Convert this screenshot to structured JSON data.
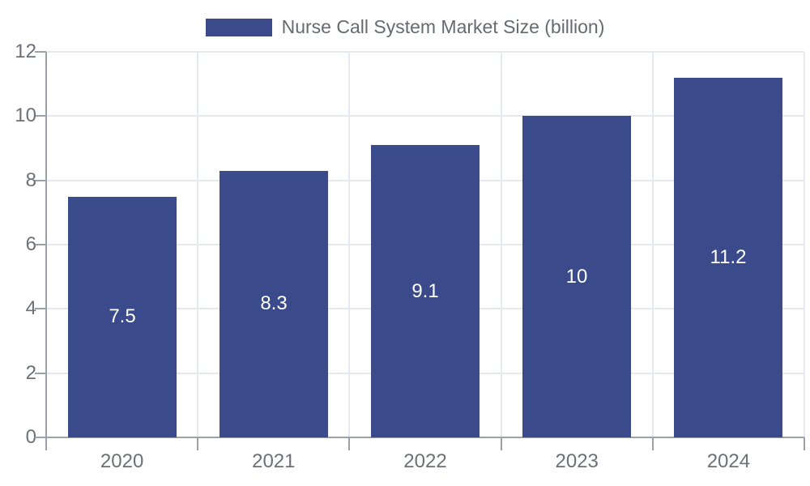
{
  "chart_data": {
    "type": "bar",
    "legend_label": "Nurse Call System Market Size (billion)",
    "categories": [
      "2020",
      "2021",
      "2022",
      "2023",
      "2024"
    ],
    "values": [
      7.5,
      8.3,
      9.1,
      10,
      11.2
    ],
    "value_labels": [
      "7.5",
      "8.3",
      "9.1",
      "10",
      "11.2"
    ],
    "yticks": [
      0,
      2,
      4,
      6,
      8,
      10,
      12
    ],
    "ytick_labels": [
      "0",
      "2",
      "4",
      "6",
      "8",
      "10",
      "12"
    ],
    "ylim": [
      0,
      12
    ],
    "grid": true,
    "legend_position": "top-center",
    "value_label_position": "inside-center"
  },
  "colors": {
    "bar": "#3A4A8A",
    "axis": "#9CA1A8",
    "grid": "#E5E8EC",
    "tick_label": "#6E7079",
    "legend_text": "#666A70",
    "bar_value_label": "#FFFFFF",
    "background": "#FFFFFF"
  }
}
